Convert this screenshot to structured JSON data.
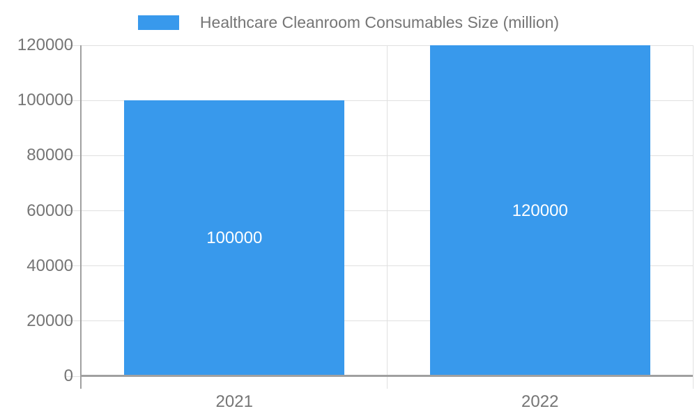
{
  "legend": {
    "label": "Healthcare Cleanroom Consumables Size (million)"
  },
  "chart_data": {
    "type": "bar",
    "categories": [
      "2021",
      "2022"
    ],
    "values": [
      100000,
      120000
    ],
    "series": [
      {
        "name": "Healthcare Cleanroom Consumables Size (million)",
        "values": [
          100000,
          120000
        ]
      }
    ],
    "bar_value_labels": [
      "100000",
      "120000"
    ],
    "title": "",
    "xlabel": "",
    "ylabel": "",
    "ylim": [
      0,
      120000
    ],
    "yticks": [
      0,
      20000,
      40000,
      60000,
      80000,
      100000,
      120000
    ],
    "ytick_labels": [
      "0",
      "20000",
      "40000",
      "60000",
      "80000",
      "100000",
      "120000"
    ],
    "grid": true,
    "legend_position": "top",
    "colors": {
      "bar": "#3899EC",
      "bar_label": "#FFFFFF",
      "axis_text": "#757575",
      "legend_text": "#757575",
      "gridline": "#E0E0E0",
      "axis_line": "#A0A0A0",
      "background": "#FFFFFF"
    }
  }
}
